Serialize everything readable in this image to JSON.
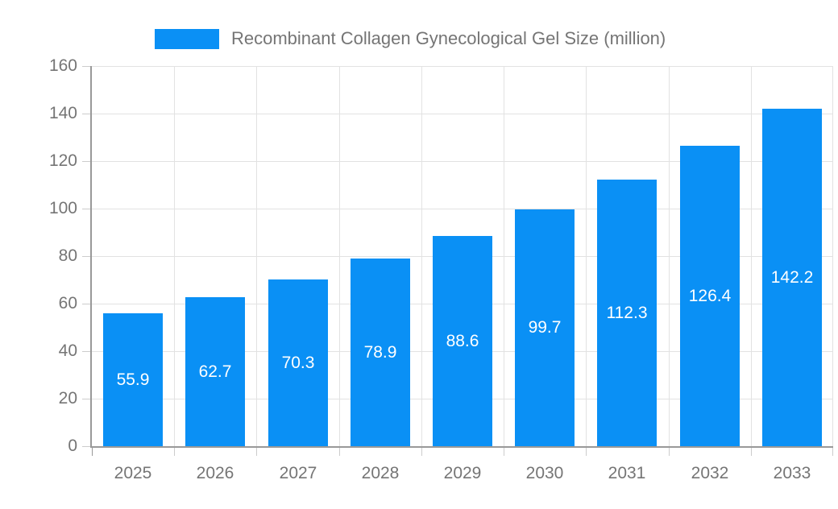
{
  "chart_data": {
    "type": "bar",
    "title": "Recombinant Collagen Gynecological Gel Size (million)",
    "legend_position": "top",
    "categories": [
      "2025",
      "2026",
      "2027",
      "2028",
      "2029",
      "2030",
      "2031",
      "2032",
      "2033"
    ],
    "values": [
      55.9,
      62.7,
      70.3,
      78.9,
      88.6,
      99.7,
      112.3,
      126.4,
      142.2
    ],
    "value_labels": [
      "55.9",
      "62.7",
      "70.3",
      "78.9",
      "88.6",
      "99.7",
      "112.3",
      "126.4",
      "142.2"
    ],
    "xlabel": "",
    "ylabel": "",
    "ylim": [
      0,
      160
    ],
    "ytick_step": 20,
    "ytick_labels": [
      "0",
      "20",
      "40",
      "60",
      "80",
      "100",
      "120",
      "140",
      "160"
    ],
    "grid": true,
    "colors": {
      "bar": "#0a90f5",
      "value_label_text": "#ffffff",
      "axis_text": "#757575",
      "grid_line": "#e2e2e2",
      "axis_line": "#999999",
      "tick": "#cccccc",
      "background": "#ffffff"
    }
  }
}
